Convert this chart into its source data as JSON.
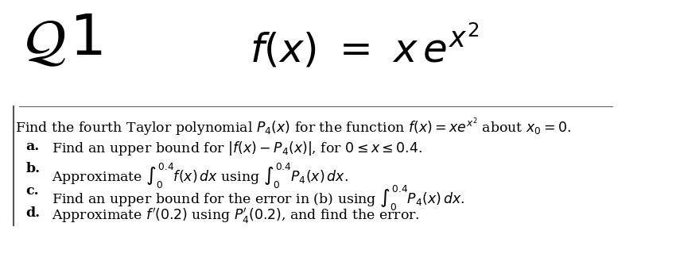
{
  "bg_color": "#ffffff",
  "q_label": "Q  1",
  "q_fontsize": 52,
  "title_math": "f(x) = x\\,e^{x^2}",
  "title_fontsize": 36,
  "intro_text": "Find the fourth Taylor polynomial $P_4(x)$ for the function $f(x) = xe^{x^2}$ about $x_0 = 0.$",
  "intro_fontsize": 12.5,
  "items": [
    {
      "label": "a.",
      "text": "Find an upper bound for $|f(x) - P_4(x)|$, for $0 \\leq x \\leq 0.4$."
    },
    {
      "label": "b.",
      "text": "Approximate $\\int_0^{0.4} f(x)\\, dx$ using $\\int_0^{0.4} P_4(x)\\, dx$."
    },
    {
      "label": "c.",
      "text": "Find an upper bound for the error in (b) using $\\int_0^{0.4} P_4(x)\\, dx$."
    },
    {
      "label": "d.",
      "text": "Approximate $f'(0.2)$ using $P_4'(0.2)$, and find the error."
    }
  ],
  "item_fontsize": 12.5,
  "text_color": "#000000"
}
